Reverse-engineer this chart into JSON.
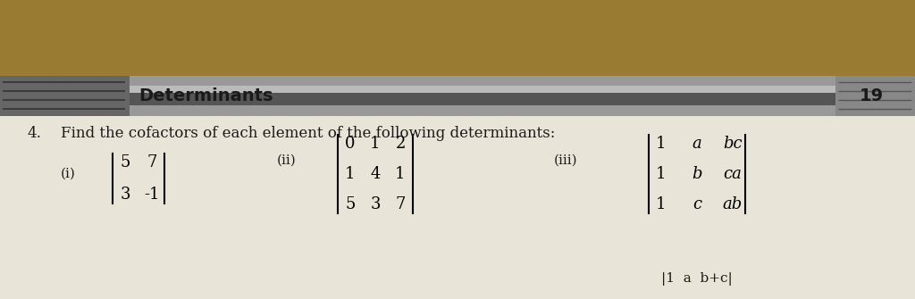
{
  "bg_color": "#d8d5c8",
  "paper_color": "#e8e5d8",
  "header_text": "Determinants",
  "page_number": "19",
  "question_number": "4.",
  "question_text": "Find the cofactors of each element of the following determinants:",
  "part_i_label": "(i)",
  "part_ii_label": "(ii)",
  "part_iii_label": "(iii)",
  "matrix_i": [
    [
      "5",
      "7"
    ],
    [
      "3",
      "-1"
    ]
  ],
  "matrix_ii": [
    [
      "0",
      "1",
      "2"
    ],
    [
      "1",
      "4",
      "1"
    ],
    [
      "5",
      "3",
      "7"
    ]
  ],
  "matrix_iii": [
    [
      "1",
      "a",
      "bc"
    ],
    [
      "1",
      "b",
      "ca"
    ],
    [
      "1",
      "c",
      "ab"
    ]
  ],
  "bottom_partial": "|1  a  b+c|",
  "text_color": "#1a1a1a",
  "header_stripe_dark": "#555555",
  "header_stripe_med": "#888888",
  "header_stripe_light": "#aaaaaa",
  "left_tab_color": "#666666",
  "right_tab_color": "#777777"
}
